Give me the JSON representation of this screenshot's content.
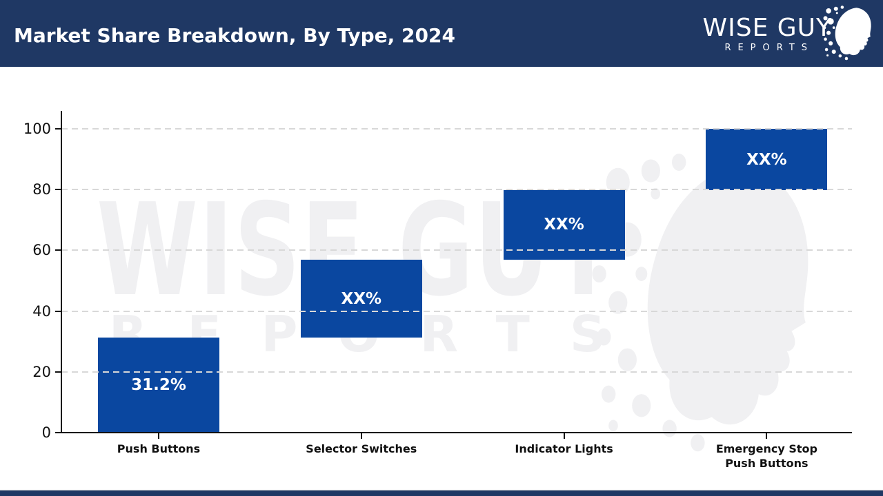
{
  "header": {
    "title": "Market Share Breakdown, By Type, 2024",
    "logo": {
      "line1": "WISE GUY",
      "line2": "REPORTS"
    }
  },
  "watermark": {
    "line1": "WISE GUY",
    "line2": "REPORTS"
  },
  "chart_data": {
    "type": "bar",
    "subtype": "waterfall-floating-bars",
    "title": "Market Share Breakdown, By Type, 2024",
    "unit": "%",
    "categories": [
      "Push Buttons",
      "Selector Switches",
      "Indicator Lights",
      "Emergency Stop\nPush Buttons"
    ],
    "segments": [
      {
        "category": "Push Buttons",
        "start": 0,
        "end": 31.2,
        "label": "31.2%"
      },
      {
        "category": "Selector Switches",
        "start": 31.2,
        "end": 57,
        "label": "XX%"
      },
      {
        "category": "Indicator Lights",
        "start": 57,
        "end": 79.8,
        "label": "XX%"
      },
      {
        "category": "Emergency Stop Push Buttons",
        "start": 79.8,
        "end": 100,
        "label": "XX%"
      }
    ],
    "yticks": [
      0,
      20,
      40,
      60,
      80,
      100
    ],
    "ylim": [
      0,
      106
    ],
    "grid": "horizontal-dashed",
    "legend": "none",
    "colors": {
      "bar": "#0a47a0",
      "grid": "#d8d8d8",
      "axis": "#111111",
      "header_bg": "#1f3864",
      "watermark": "#f0f0f2",
      "value_label": "#ffffff"
    }
  }
}
